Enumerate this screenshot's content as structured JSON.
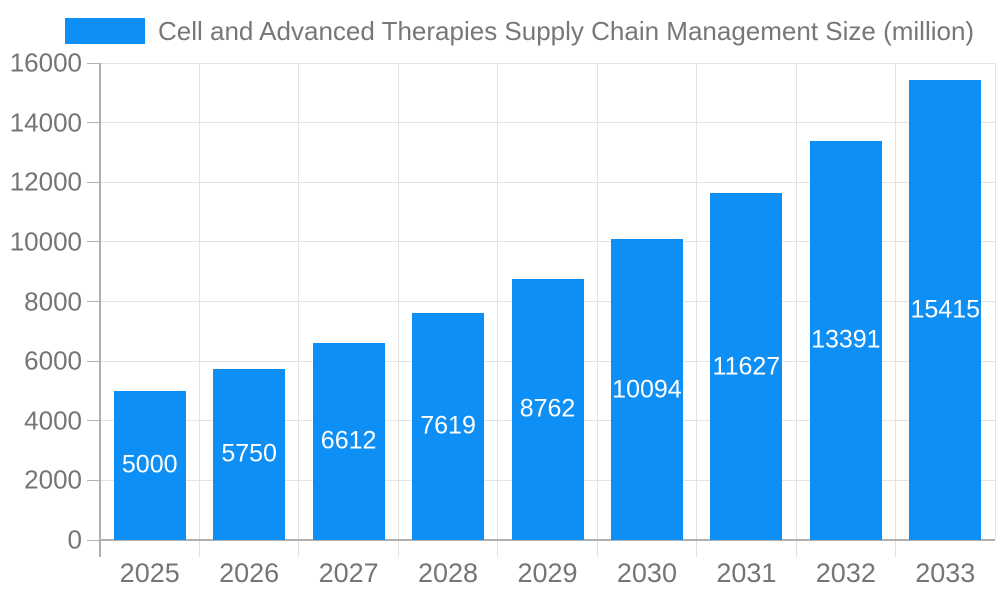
{
  "legend": {
    "label": "Cell and Advanced Therapies Supply Chain Management Size (million)"
  },
  "chart_data": {
    "type": "bar",
    "title": "Cell and Advanced Therapies Supply Chain Management Size (million)",
    "categories": [
      "2025",
      "2026",
      "2027",
      "2028",
      "2029",
      "2030",
      "2031",
      "2032",
      "2033"
    ],
    "values": [
      5000,
      5750,
      6612,
      7619,
      8762,
      10094,
      11627,
      13391,
      15415
    ],
    "series": [
      {
        "name": "Cell and Advanced Therapies Supply Chain Management Size (million)",
        "values": [
          5000,
          5750,
          6612,
          7619,
          8762,
          10094,
          11627,
          13391,
          15415
        ]
      }
    ],
    "xlabel": "",
    "ylabel": "",
    "ylim": [
      0,
      16000
    ],
    "yticks": [
      0,
      2000,
      4000,
      6000,
      8000,
      10000,
      12000,
      14000,
      16000
    ],
    "grid": true,
    "legend_position": "top",
    "data_labels": "inside-center-white",
    "colors": {
      "bar": "#0d8ff5",
      "bar_label": "#ffffff",
      "axis_line": "#b0b0b0",
      "grid_line": "#e3e3e3",
      "tick_mark": "#e0e0e0",
      "tick_label": "#757575",
      "legend_text": "#777777",
      "background": "#ffffff"
    }
  }
}
